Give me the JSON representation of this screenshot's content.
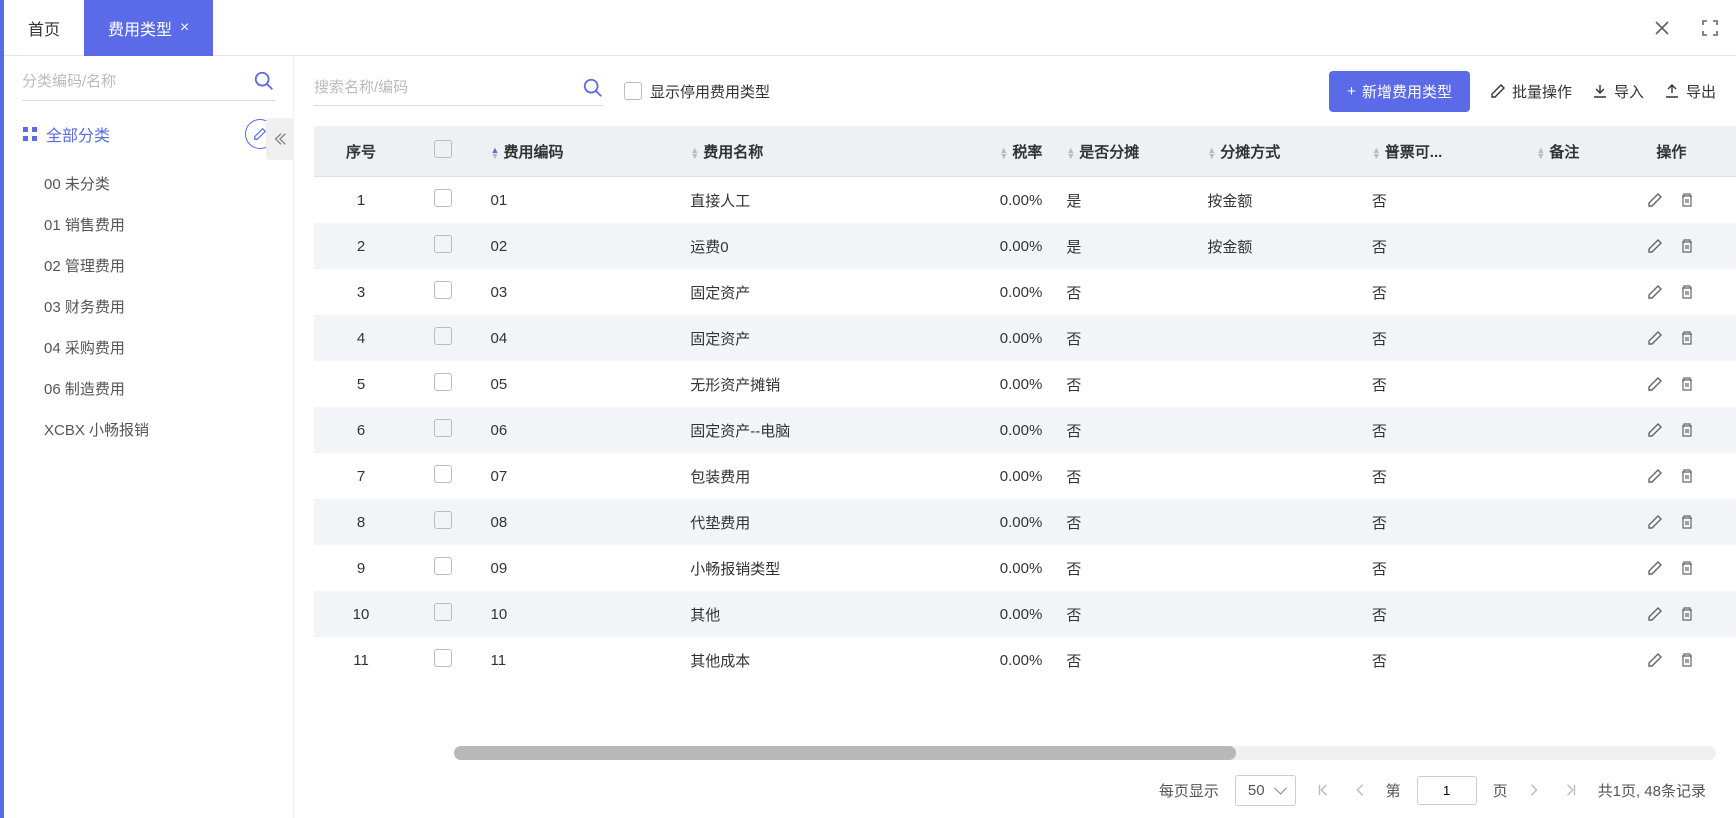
{
  "tabs": {
    "home": "首页",
    "active": "费用类型"
  },
  "sidebar": {
    "search_placeholder": "分类编码/名称",
    "root": "全部分类",
    "items": [
      "00 未分类",
      "01 销售费用",
      "02 管理费用",
      "03 财务费用",
      "04 采购费用",
      "06 制造费用",
      "XCBX 小畅报销"
    ]
  },
  "toolbar": {
    "search_placeholder": "搜索名称/编码",
    "show_disabled": "显示停用费用类型",
    "add_button": "新增费用类型",
    "batch": "批量操作",
    "import": "导入",
    "export": "导出"
  },
  "table": {
    "headers": {
      "seq": "序号",
      "code": "费用编码",
      "name": "费用名称",
      "rate": "税率",
      "apportion": "是否分摊",
      "method": "分摊方式",
      "invoice": "普票可...",
      "remark": "备注",
      "action": "操作"
    },
    "rows": [
      {
        "seq": "1",
        "code": "01",
        "name": "直接人工",
        "rate": "0.00%",
        "apportion": "是",
        "method": "按金额",
        "invoice": "否"
      },
      {
        "seq": "2",
        "code": "02",
        "name": "运费0",
        "rate": "0.00%",
        "apportion": "是",
        "method": "按金额",
        "invoice": "否"
      },
      {
        "seq": "3",
        "code": "03",
        "name": "固定资产",
        "rate": "0.00%",
        "apportion": "否",
        "method": "",
        "invoice": "否"
      },
      {
        "seq": "4",
        "code": "04",
        "name": "固定资产",
        "rate": "0.00%",
        "apportion": "否",
        "method": "",
        "invoice": "否"
      },
      {
        "seq": "5",
        "code": "05",
        "name": "无形资产摊销",
        "rate": "0.00%",
        "apportion": "否",
        "method": "",
        "invoice": "否"
      },
      {
        "seq": "6",
        "code": "06",
        "name": "固定资产--电脑",
        "rate": "0.00%",
        "apportion": "否",
        "method": "",
        "invoice": "否"
      },
      {
        "seq": "7",
        "code": "07",
        "name": "包装费用",
        "rate": "0.00%",
        "apportion": "否",
        "method": "",
        "invoice": "否"
      },
      {
        "seq": "8",
        "code": "08",
        "name": "代垫费用",
        "rate": "0.00%",
        "apportion": "否",
        "method": "",
        "invoice": "否"
      },
      {
        "seq": "9",
        "code": "09",
        "name": "小畅报销类型",
        "rate": "0.00%",
        "apportion": "否",
        "method": "",
        "invoice": "否"
      },
      {
        "seq": "10",
        "code": "10",
        "name": "其他",
        "rate": "0.00%",
        "apportion": "否",
        "method": "",
        "invoice": "否"
      },
      {
        "seq": "11",
        "code": "11",
        "name": "其他成本",
        "rate": "0.00%",
        "apportion": "否",
        "method": "",
        "invoice": "否"
      }
    ]
  },
  "pagination": {
    "per_page_label": "每页显示",
    "per_page_value": "50",
    "page_label_prefix": "第",
    "page_value": "1",
    "page_label_suffix": "页",
    "summary": "共1页, 48条记录"
  },
  "colors": {
    "primary": "#5b6be8",
    "header_bg": "#eef0f4",
    "row_alt": "#f3f4f7"
  }
}
